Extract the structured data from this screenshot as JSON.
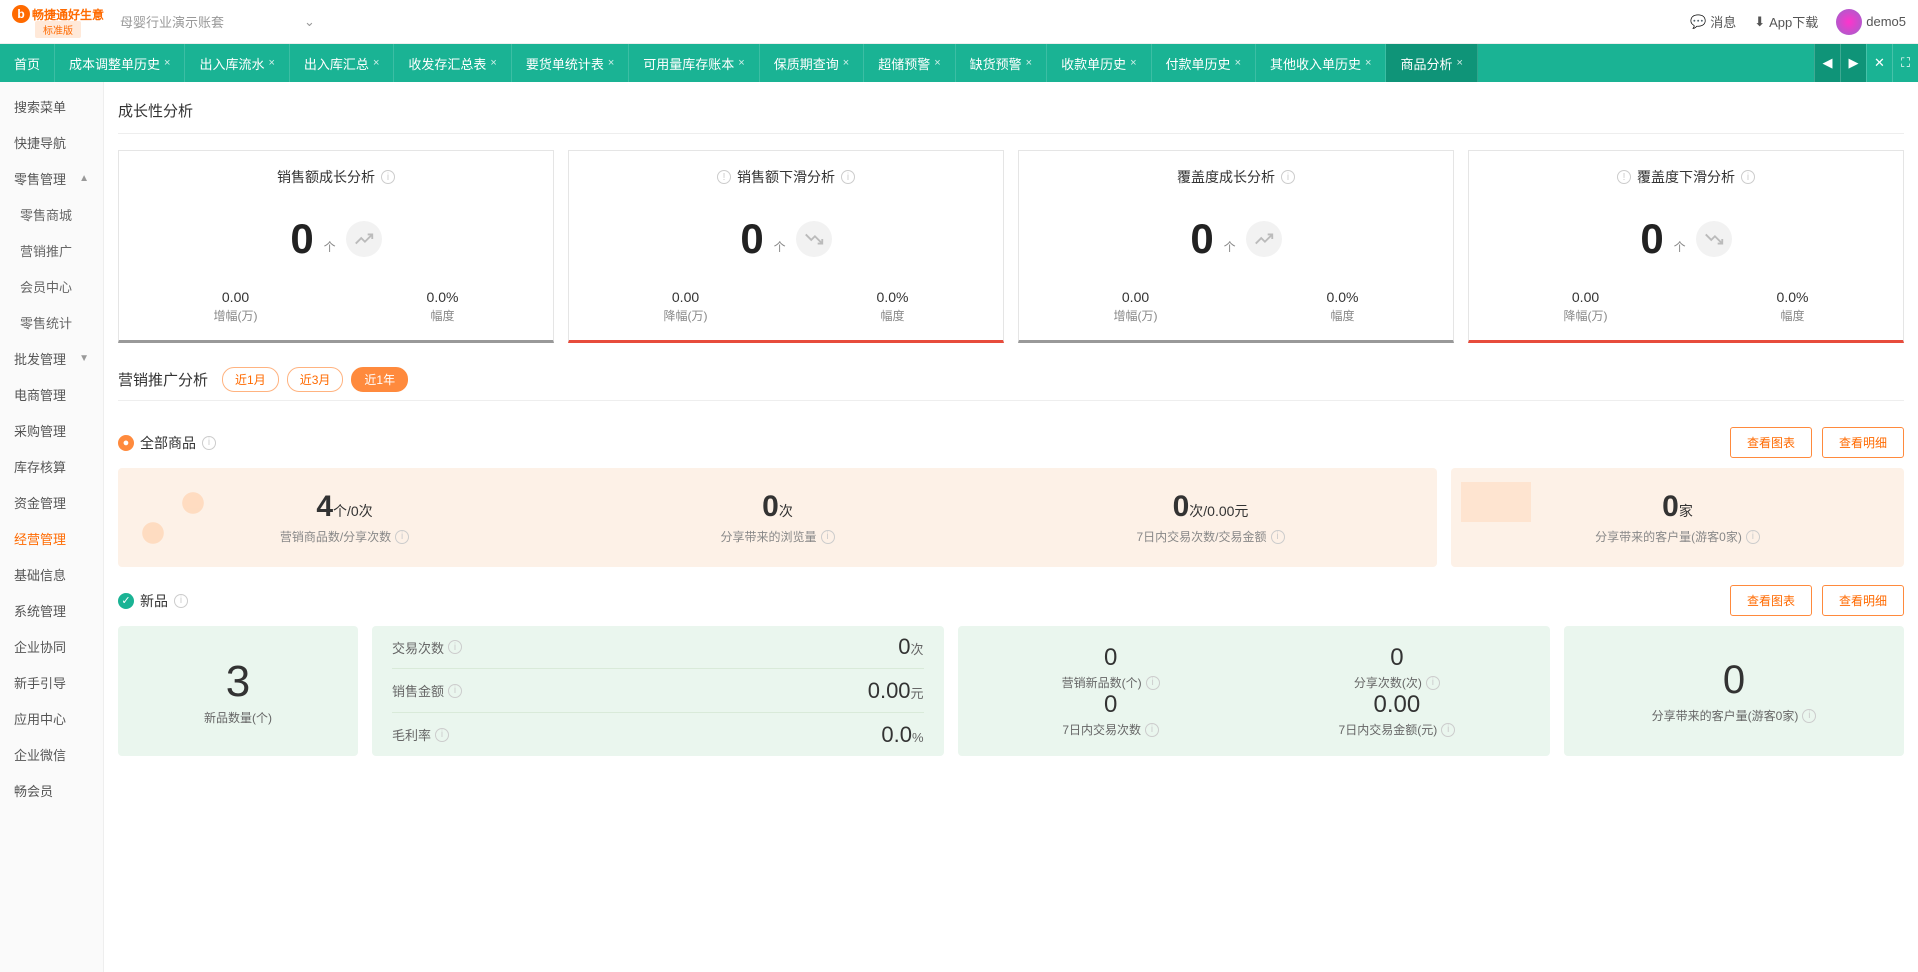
{
  "header": {
    "brand": "畅捷通好生意",
    "edition": "标准版",
    "account_selector": "母婴行业演示账套",
    "messages": "消息",
    "app_download": "App下载",
    "username": "demo5"
  },
  "tabs": {
    "home": "首页",
    "items": [
      "成本调整单历史",
      "出入库流水",
      "出入库汇总",
      "收发存汇总表",
      "要货单统计表",
      "可用量库存账本",
      "保质期查询",
      "超储预警",
      "缺货预警",
      "收款单历史",
      "付款单历史",
      "其他收入单历史",
      "商品分析"
    ],
    "active_index": 12
  },
  "sidebar": {
    "items": [
      {
        "label": "搜索菜单"
      },
      {
        "label": "快捷导航"
      },
      {
        "label": "零售管理",
        "expandable": true,
        "expanded": true
      },
      {
        "label": "零售商城",
        "sub": true
      },
      {
        "label": "营销推广",
        "sub": true
      },
      {
        "label": "会员中心",
        "sub": true
      },
      {
        "label": "零售统计",
        "sub": true
      },
      {
        "label": "批发管理",
        "expandable": true
      },
      {
        "label": "电商管理"
      },
      {
        "label": "采购管理"
      },
      {
        "label": "库存核算"
      },
      {
        "label": "资金管理"
      },
      {
        "label": "经营管理",
        "active": true
      },
      {
        "label": "基础信息"
      },
      {
        "label": "系统管理"
      },
      {
        "label": "企业协同"
      },
      {
        "label": "新手引导"
      },
      {
        "label": "应用中心"
      },
      {
        "label": "企业微信"
      },
      {
        "label": "畅会员"
      }
    ]
  },
  "growth": {
    "section_title": "成长性分析",
    "cards": [
      {
        "title": "销售额成长分析",
        "value": "0",
        "unit": "个",
        "trend": "up",
        "left_val": "0.00",
        "left_lab": "增幅(万)",
        "right_val": "0.0%",
        "right_lab": "幅度"
      },
      {
        "title": "销售额下滑分析",
        "value": "0",
        "unit": "个",
        "trend": "down",
        "warn": true,
        "left_val": "0.00",
        "left_lab": "降幅(万)",
        "right_val": "0.0%",
        "right_lab": "幅度"
      },
      {
        "title": "覆盖度成长分析",
        "value": "0",
        "unit": "个",
        "trend": "up",
        "left_val": "0.00",
        "left_lab": "增幅(万)",
        "right_val": "0.0%",
        "right_lab": "幅度"
      },
      {
        "title": "覆盖度下滑分析",
        "value": "0",
        "unit": "个",
        "trend": "down",
        "warn": true,
        "left_val": "0.00",
        "left_lab": "降幅(万)",
        "right_val": "0.0%",
        "right_lab": "幅度"
      }
    ]
  },
  "marketing": {
    "title": "营销推广分析",
    "pills": [
      "近1月",
      "近3月",
      "近1年"
    ],
    "active_pill": 2,
    "all_products": {
      "title": "全部商品",
      "btn_chart": "查看图表",
      "btn_detail": "查看明细",
      "cells": [
        {
          "main_big": "4",
          "main_rest": "个/0次",
          "sub": "营销商品数/分享次数"
        },
        {
          "main_big": "0",
          "main_rest": "次",
          "sub": "分享带来的浏览量"
        },
        {
          "main_big": "0",
          "main_rest": "次/0.00元",
          "sub": "7日内交易次数/交易金额"
        }
      ],
      "right": {
        "main_big": "0",
        "main_rest": "家",
        "sub": "分享带来的客户量(游客0家)"
      }
    },
    "new_products": {
      "title": "新品",
      "btn_chart": "查看图表",
      "btn_detail": "查看明细",
      "left": {
        "value": "3",
        "label": "新品数量(个)"
      },
      "mid": [
        {
          "label": "交易次数",
          "value": "0",
          "unit": "次"
        },
        {
          "label": "销售金额",
          "value": "0.00",
          "unit": "元"
        },
        {
          "label": "毛利率",
          "value": "0.0",
          "unit": "%"
        }
      ],
      "grid": [
        {
          "value": "0",
          "label": "营销新品数(个)"
        },
        {
          "value": "0",
          "label": "分享次数(次)"
        },
        {
          "value": "0",
          "label": "7日内交易次数"
        },
        {
          "value": "0.00",
          "label": "7日内交易金额(元)"
        }
      ],
      "right": {
        "value": "0",
        "label": "分享带来的客户量(游客0家)"
      }
    }
  }
}
